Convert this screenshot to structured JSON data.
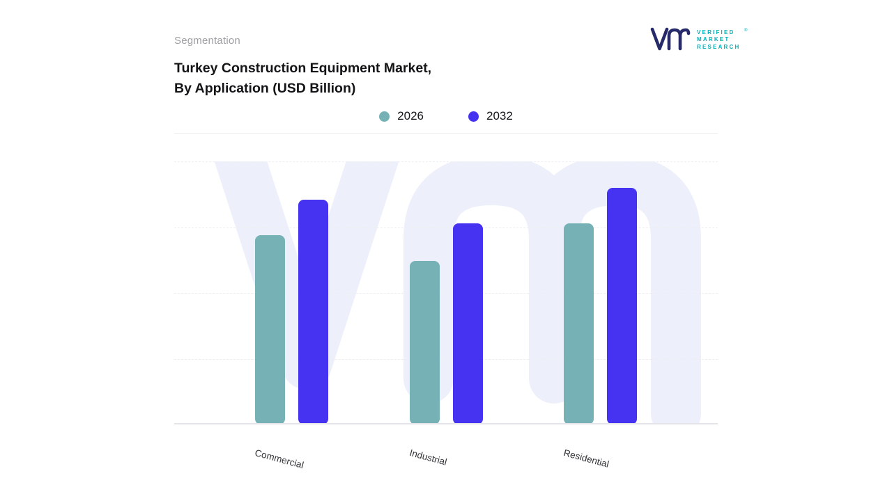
{
  "header": {
    "eyebrow": "Segmentation",
    "title_line1": "Turkey Construction Equipment Market,",
    "title_line2": "By Application (USD Billion)"
  },
  "logo": {
    "line1": "VERIFIED",
    "line2": "MARKET",
    "line3": "RESEARCH",
    "registered": "®",
    "glyph_color": "#262a68",
    "text_color": "#00b1bb"
  },
  "legend": [
    {
      "label": "2026",
      "color": "#76b1b6"
    },
    {
      "label": "2032",
      "color": "#4632f1"
    }
  ],
  "chart_data": {
    "type": "bar",
    "title": "Turkey Construction Equipment Market, By Application (USD Billion)",
    "categories": [
      "Commercial",
      "Industrial",
      "Residential"
    ],
    "series": [
      {
        "name": "2026",
        "color": "#76b1b6",
        "values": [
          80,
          69,
          85
        ]
      },
      {
        "name": "2032",
        "color": "#4632f1",
        "values": [
          95,
          85,
          100
        ]
      }
    ],
    "xlabel": "",
    "ylabel": "",
    "ylim": [
      0,
      100
    ],
    "y_axis_ticks_visible": false,
    "grid": "dashed-horizontal",
    "legend_position": "top-center",
    "watermark": "vm",
    "watermark_color": "#edeffb"
  }
}
